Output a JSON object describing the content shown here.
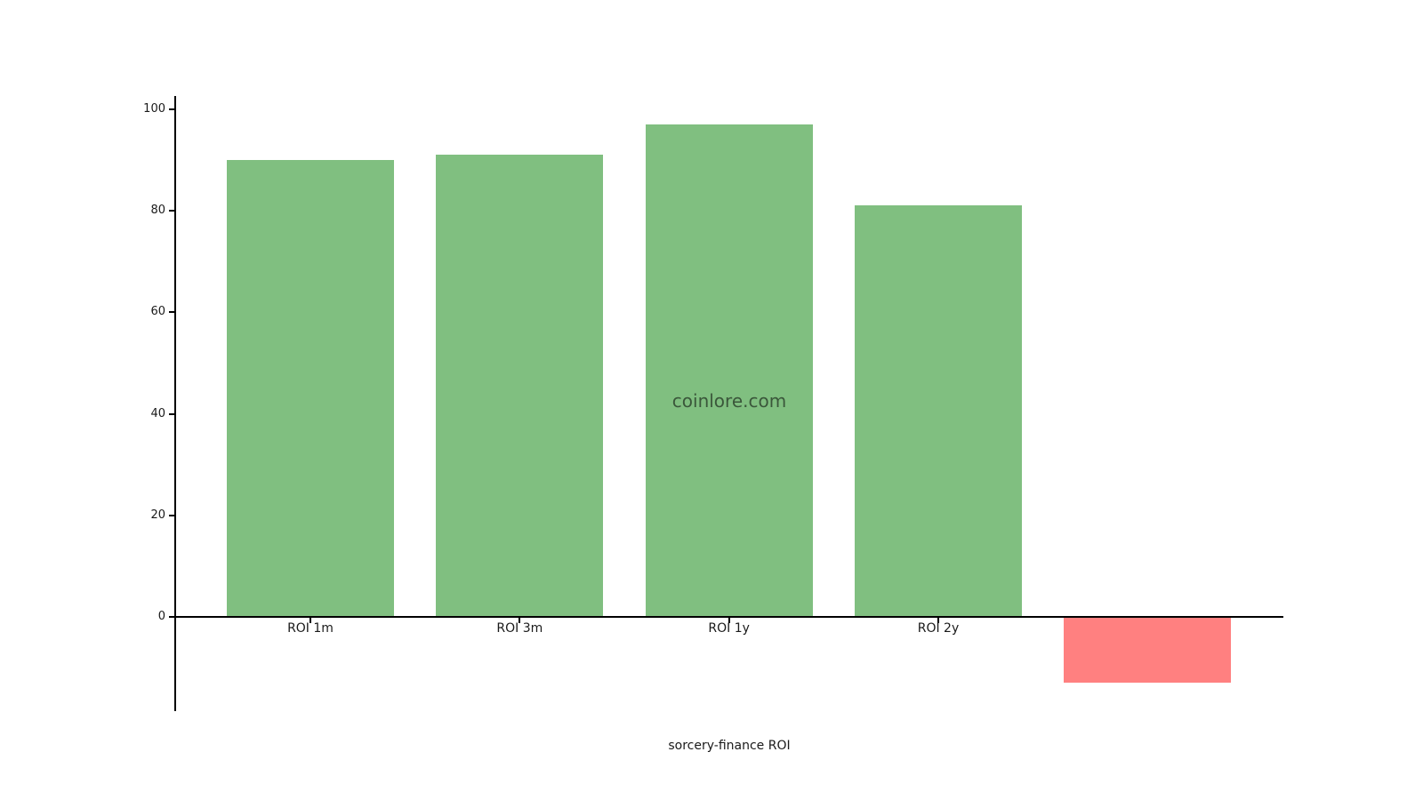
{
  "watermark": {
    "text": "coinlore.com",
    "color": "rgba(0,0,0,0.55)"
  },
  "chart_data": {
    "type": "bar",
    "title": "sorcery-finance ROI",
    "categories": [
      "ROI 1m",
      "ROI 3m",
      "ROI 1y",
      "ROI 2y",
      ""
    ],
    "values": [
      90,
      91,
      97,
      81,
      -13
    ],
    "yticks": [
      0,
      20,
      40,
      60,
      80,
      100
    ],
    "ylim": [
      -18.6,
      102.6
    ],
    "xlabel": "",
    "ylabel": "",
    "grid": false,
    "legend": "none",
    "colors": {
      "positive": "#80bf80",
      "negative": "#ff8080"
    },
    "axis_color": "#000000",
    "text_color": "#1a1a1a"
  }
}
